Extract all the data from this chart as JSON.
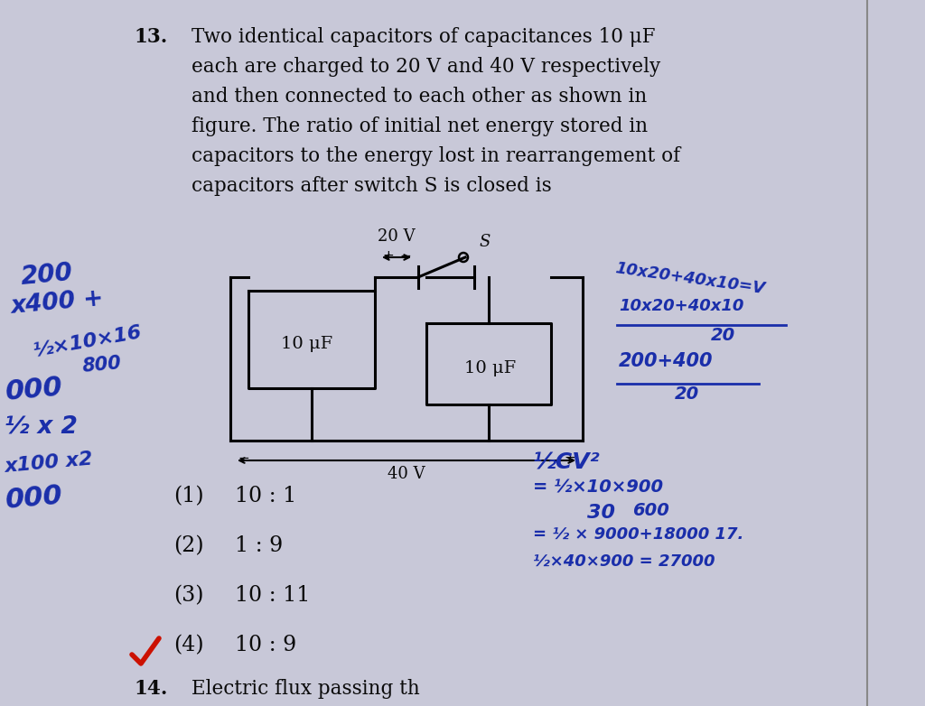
{
  "background_color": "#c8c8d8",
  "question_number": "13.",
  "question_lines": [
    "Two identical capacitors of capacitances 10 μF",
    "each are charged to 20 V and 40 V respectively",
    "and then connected to each other as shown in",
    "figure. The ratio of initial net energy stored in",
    "capacitors to the energy lost in rearrangement of",
    "capacitors after switch S is closed is"
  ],
  "options": [
    {
      "label": "(1)",
      "value": "10 : 1",
      "struck": false
    },
    {
      "label": "(2)",
      "value": "1 : 9",
      "struck": false
    },
    {
      "label": "(3)",
      "value": "10 : 11",
      "struck": false
    },
    {
      "label": "(4)",
      "value": "10 : 9",
      "struck": false,
      "checked": true
    }
  ],
  "circuit": {
    "left_cap_label": "10 μF",
    "right_cap_label": "10 μF",
    "v_top": "20 V",
    "v_bot": "40 V",
    "switch": "S"
  },
  "text_color": "#0a0a0a",
  "hw_color": "#1a2eaa",
  "check_color": "#cc1100",
  "q14_text": "Electric flux passing th"
}
